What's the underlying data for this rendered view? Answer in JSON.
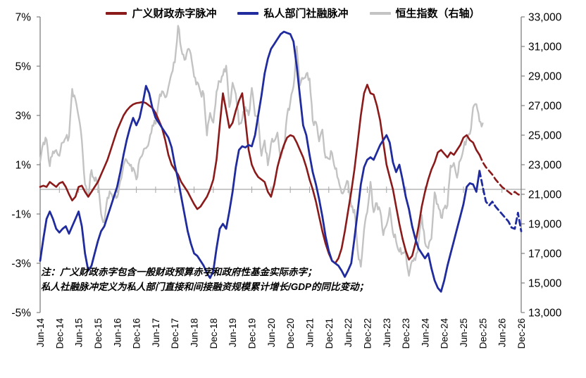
{
  "legend": {
    "items": [
      {
        "id": "fiscal-pulse",
        "label": "广义财政赤字脉冲",
        "color": "#8B1A1A"
      },
      {
        "id": "credit-pulse",
        "label": "私人部门社融脉冲",
        "color": "#202B9E"
      },
      {
        "id": "hang-seng",
        "label": "恒生指数（右轴）",
        "color": "#C3C3C3"
      }
    ]
  },
  "note": {
    "line1": "注：广义财政赤字包含一般财政预算赤字和政府性基金实际赤字；",
    "line2": "私人社融脉冲定义为私人部门直接和间接融资规模累计增长/GDP的同比变动；"
  },
  "chart_data": {
    "type": "line",
    "title": "",
    "xlabel": "",
    "ylabel_left": "",
    "ylabel_right": "",
    "grid": false,
    "legend_position": "top-center",
    "x_start": "Jun-14",
    "x_end": "Dec-26",
    "x_frequency": "monthly",
    "x_tick_labels": [
      "Jun-14",
      "Dec-14",
      "Jun-15",
      "Dec-15",
      "Jun-16",
      "Dec-16",
      "Jun-17",
      "Dec-17",
      "Jun-18",
      "Dec-18",
      "Jun-19",
      "Dec-19",
      "Jun-20",
      "Dec-20",
      "Jun-21",
      "Dec-21",
      "Jun-22",
      "Dec-22",
      "Jun-23",
      "Dec-23",
      "Jun-24",
      "Dec-24",
      "Jun-25",
      "Dec-25",
      "Jun-26",
      "Dec-26"
    ],
    "left_axis": {
      "tick_labels": [
        "7%",
        "5%",
        "3%",
        "1%",
        "-1%",
        "-3%",
        "-5%"
      ],
      "tick_values": [
        7,
        5,
        3,
        1,
        -1,
        -3,
        -5
      ],
      "min": -5,
      "max": 7,
      "unit": "%"
    },
    "right_axis": {
      "tick_labels": [
        "33,000",
        "31,000",
        "29,000",
        "27,000",
        "25,000",
        "23,000",
        "21,000",
        "19,000",
        "17,000",
        "15,000",
        "13,000"
      ],
      "tick_values": [
        33000,
        31000,
        29000,
        27000,
        25000,
        23000,
        21000,
        19000,
        17000,
        15000,
        13000
      ],
      "min": 13000,
      "max": 33000
    },
    "forecast_note": "red and blue series are dashed (forecast) from Nov-25 onward",
    "series": [
      {
        "name": "广义财政赤字脉冲",
        "axis": "left",
        "color": "#8B1A1A",
        "style": "solid-then-dashed",
        "dash_from_index": 137,
        "width": 2.6,
        "values": [
          0.1,
          0.15,
          0.1,
          0.3,
          0.2,
          0.1,
          0.25,
          0.3,
          0.1,
          -0.2,
          -0.45,
          -0.3,
          0.1,
          0.15,
          -0.1,
          -0.3,
          -0.1,
          0.1,
          0.3,
          0.6,
          0.9,
          1.2,
          1.6,
          2.0,
          2.4,
          2.7,
          3.0,
          3.2,
          3.35,
          3.45,
          3.5,
          3.52,
          3.55,
          3.5,
          3.4,
          3.3,
          3.1,
          2.8,
          2.5,
          2.0,
          1.4,
          1.0,
          0.8,
          0.6,
          0.3,
          0.1,
          -0.1,
          -0.35,
          -0.6,
          -0.8,
          -0.7,
          -0.5,
          -0.3,
          0.0,
          0.4,
          1.2,
          2.6,
          3.9,
          3.2,
          2.5,
          2.7,
          3.2,
          3.6,
          3.9,
          2.8,
          1.6,
          1.0,
          0.7,
          0.5,
          0.4,
          0.3,
          -0.1,
          -0.3,
          0.2,
          0.9,
          1.4,
          1.8,
          2.1,
          2.2,
          2.15,
          1.9,
          1.6,
          1.3,
          0.9,
          0.4,
          0.0,
          -0.5,
          -1.1,
          -1.7,
          -2.2,
          -2.6,
          -2.9,
          -3.0,
          -2.8,
          -2.4,
          -1.7,
          -0.9,
          -0.1,
          0.8,
          1.9,
          3.0,
          3.9,
          4.25,
          3.9,
          3.85,
          3.4,
          2.8,
          1.9,
          1.0,
          0.5,
          0.0,
          -0.7,
          -1.4,
          -2.0,
          -2.5,
          -2.85,
          -2.7,
          -2.2,
          -1.5,
          -0.7,
          -0.1,
          0.4,
          0.8,
          1.1,
          1.5,
          1.6,
          1.45,
          1.3,
          1.5,
          1.4,
          1.6,
          1.8,
          2.1,
          2.2,
          2.0,
          1.9,
          1.6,
          1.4,
          1.1,
          0.9,
          0.75,
          0.6,
          0.4,
          0.25,
          0.1,
          0.0,
          -0.1,
          -0.2,
          -0.1,
          -0.2,
          -0.25
        ]
      },
      {
        "name": "私人部门社融脉冲",
        "axis": "left",
        "color": "#202B9E",
        "style": "solid-then-dashed",
        "dash_from_index": 137,
        "width": 2.8,
        "values": [
          -2.9,
          -2.0,
          -1.2,
          -0.9,
          -1.2,
          -1.6,
          -1.75,
          -1.6,
          -1.5,
          -1.8,
          -1.5,
          -1.2,
          -0.9,
          -1.5,
          -2.6,
          -3.3,
          -3.1,
          -2.6,
          -2.1,
          -1.7,
          -1.5,
          -1.1,
          -0.7,
          -0.3,
          0.1,
          0.7,
          1.4,
          2.0,
          2.5,
          2.9,
          2.6,
          2.9,
          3.5,
          4.2,
          3.9,
          3.3,
          2.9,
          2.7,
          2.5,
          2.3,
          2.1,
          1.7,
          1.0,
          0.4,
          -0.3,
          -1.0,
          -1.7,
          -2.2,
          -2.6,
          -2.7,
          -2.9,
          -3.1,
          -3.4,
          -3.6,
          -3.3,
          -2.4,
          -1.6,
          -1.4,
          -1.6,
          -0.9,
          -0.1,
          0.9,
          1.6,
          1.75,
          1.7,
          1.8,
          1.75,
          2.2,
          3.0,
          3.8,
          4.7,
          5.3,
          5.7,
          5.9,
          6.1,
          6.3,
          6.4,
          6.35,
          6.3,
          6.0,
          5.0,
          3.8,
          2.6,
          2.2,
          1.4,
          0.7,
          0.2,
          -0.4,
          -1.1,
          -1.9,
          -2.5,
          -2.9,
          -3.0,
          -3.1,
          -3.3,
          -3.55,
          -3.3,
          -3.0,
          -2.0,
          -0.9,
          0.2,
          0.9,
          1.2,
          1.3,
          1.2,
          1.5,
          1.8,
          2.0,
          2.2,
          1.9,
          1.1,
          0.7,
          1.0,
          0.4,
          -0.3,
          -0.8,
          -1.5,
          -2.0,
          -2.4,
          -2.6,
          -2.8,
          -2.6,
          -3.2,
          -3.7,
          -4.0,
          -4.15,
          -3.7,
          -3.1,
          -2.6,
          -2.1,
          -1.6,
          -1.1,
          -0.6,
          0.1,
          0.25,
          0.2,
          -0.1,
          0.75,
          0.1,
          -0.5,
          -0.65,
          -0.5,
          -0.7,
          -0.85,
          -1.0,
          -1.15,
          -1.3,
          -1.55,
          -1.6,
          -0.95,
          -1.7
        ]
      },
      {
        "name": "恒生指数（右轴）",
        "axis": "right",
        "color": "#C3C3C3",
        "style": "solid",
        "width": 2.4,
        "texture": "noisy-daily",
        "values": [
          23200,
          24500,
          24700,
          22900,
          23900,
          23990,
          23600,
          24500,
          24820,
          24900,
          28130,
          27420,
          26250,
          24640,
          21670,
          20850,
          22640,
          21900,
          21914,
          19683,
          19112,
          20777,
          21067,
          20815,
          20794,
          21891,
          22976,
          23297,
          22935,
          22790,
          22001,
          23361,
          23741,
          24112,
          24615,
          25661,
          25765,
          27324,
          27970,
          27554,
          28246,
          29177,
          29919,
          32400,
          30845,
          30093,
          30808,
          30469,
          28955,
          28583,
          27889,
          27789,
          24980,
          26507,
          25846,
          27942,
          28633,
          29051,
          29699,
          26901,
          28543,
          27778,
          25725,
          26092,
          26907,
          26346,
          28190,
          26313,
          26130,
          23603,
          24644,
          22961,
          24427,
          24595,
          25177,
          23459,
          24107,
          26341,
          27231,
          28284,
          31000,
          28378,
          28800,
          29152,
          28828,
          25961,
          25879,
          24576,
          25377,
          23475,
          23398,
          23802,
          22713,
          21997,
          21089,
          21415,
          21860,
          20157,
          19954,
          17223,
          16100,
          18597,
          19781,
          21842,
          19786,
          20400,
          19895,
          18234,
          18916,
          20079,
          18382,
          17810,
          17112,
          17042,
          17047,
          15485,
          16511,
          16541,
          17763,
          19600,
          17719,
          17345,
          17989,
          21134,
          20317,
          19424,
          20060,
          20225,
          22941,
          23120,
          22119,
          23290,
          24072,
          24773,
          25078,
          26856,
          27100,
          25930,
          25800
        ]
      }
    ]
  }
}
